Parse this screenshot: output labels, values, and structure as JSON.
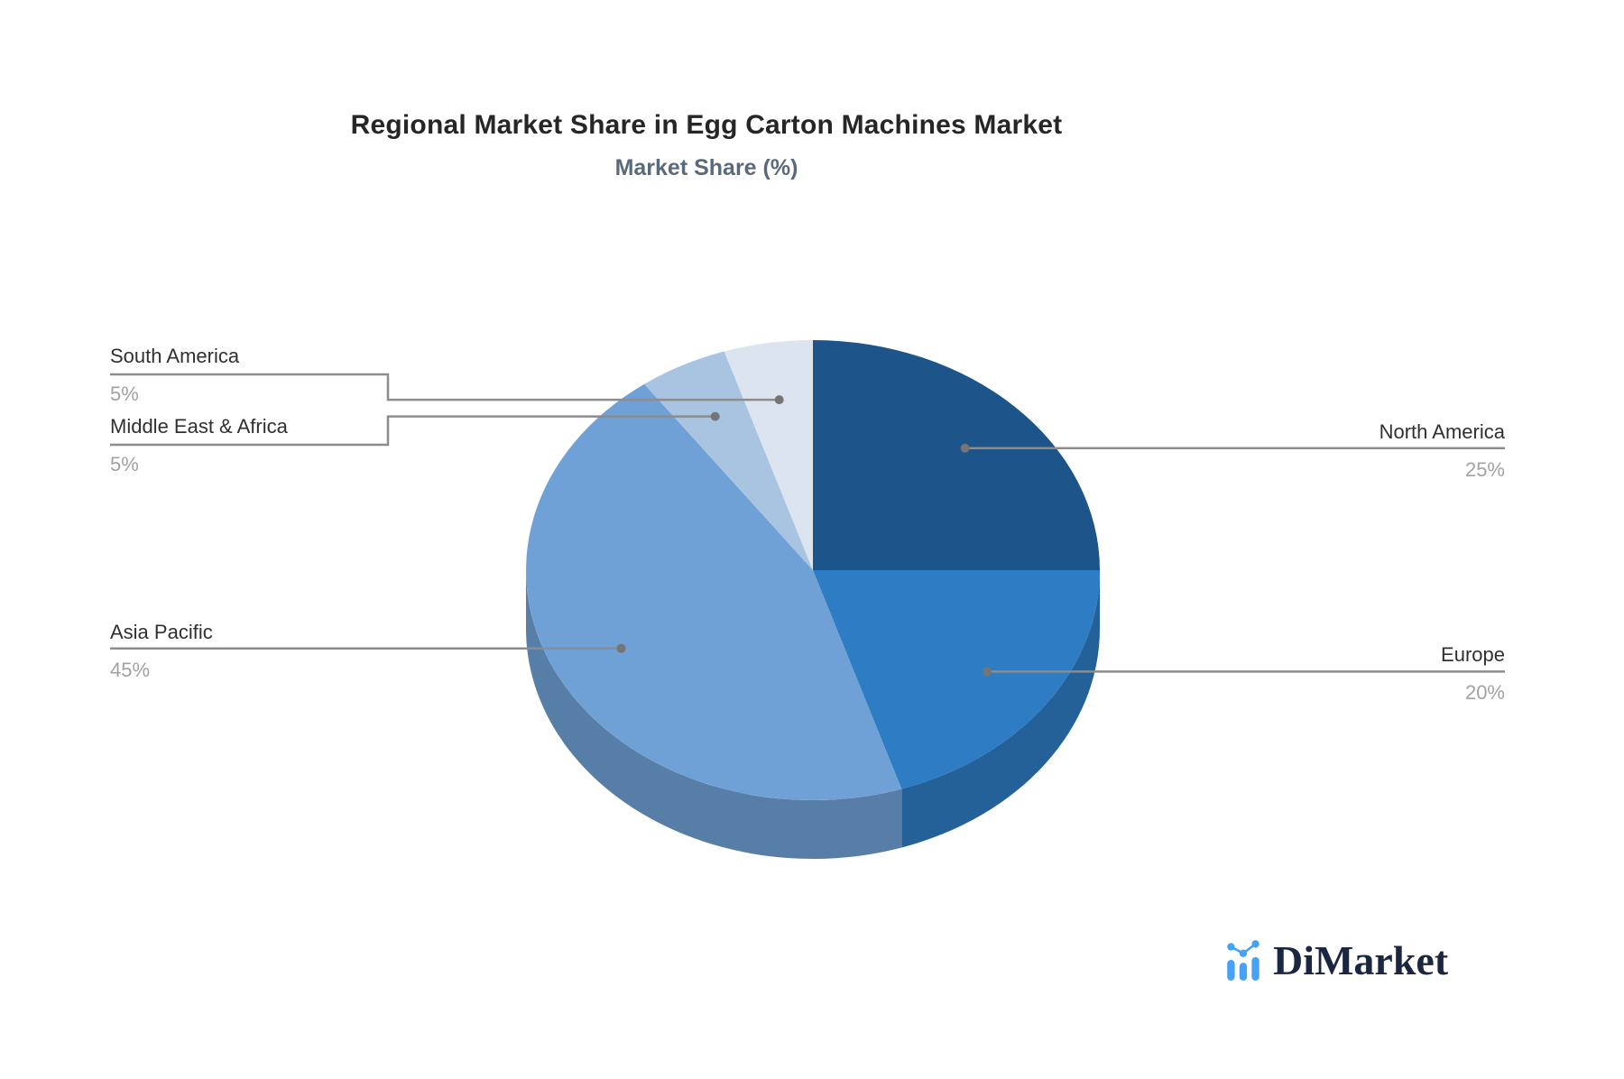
{
  "header": {
    "title": "Regional Market Share in Egg Carton Machines Market",
    "subtitle": "Market Share (%)"
  },
  "chart_data": {
    "type": "pie",
    "title": "Regional Market Share in Egg Carton Machines Market",
    "subtitle": "Market Share (%)",
    "unit": "%",
    "direction": "clockwise",
    "start_angle_deg": 0,
    "legend_position": "callout-labels",
    "effect_3d": true,
    "categories": [
      "North America",
      "Europe",
      "Asia Pacific",
      "Middle East & Africa",
      "South America"
    ],
    "values": [
      25,
      20,
      45,
      5,
      5
    ],
    "slices": [
      {
        "label": "North America",
        "value": 25,
        "pct_label": "25%",
        "color": "#1d5489"
      },
      {
        "label": "Europe",
        "value": 20,
        "pct_label": "20%",
        "color": "#2e7cc4"
      },
      {
        "label": "Asia Pacific",
        "value": 45,
        "pct_label": "45%",
        "color": "#6fa1d6"
      },
      {
        "label": "Middle East & Africa",
        "value": 5,
        "pct_label": "5%",
        "color": "#a9c4e1"
      },
      {
        "label": "South America",
        "value": 5,
        "pct_label": "5%",
        "color": "#dce4ef"
      }
    ],
    "style": {
      "title_color": "#262626",
      "subtitle_color": "#5a6a7a",
      "label_color": "#303030",
      "pct_color": "#a2a2a2",
      "leader_color": "#8c8c8c",
      "dot_color": "#757575",
      "background": "#ffffff"
    }
  },
  "logo": {
    "text": "DiMarket",
    "icon": "bar-chart-trend-icon",
    "icon_color": "#47a1f5",
    "text_color": "#1b2740"
  }
}
